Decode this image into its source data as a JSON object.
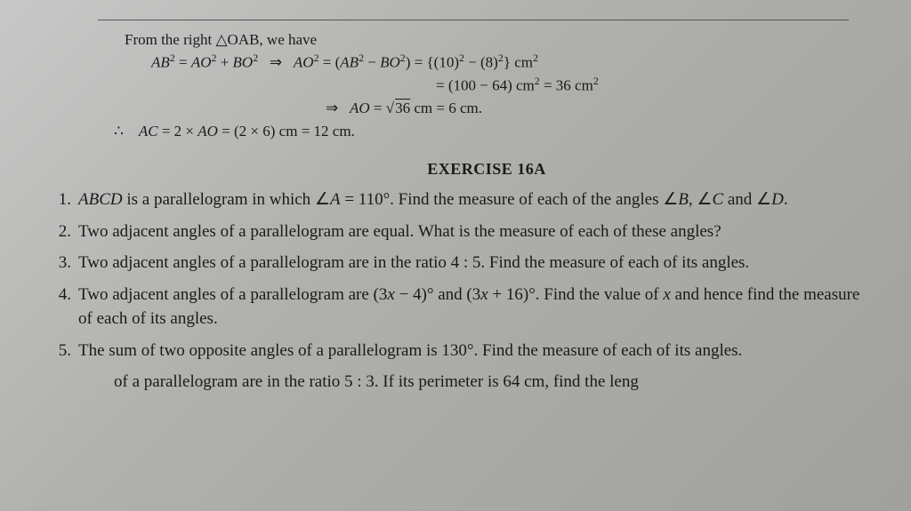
{
  "header_partial": "",
  "intro_line": "From the right △OAB, we have",
  "math1": "AB² = AO² + BO²   ⇒   AO² = (AB² − BO²) = {(10)² − (8)²} cm²",
  "math2": "= (100 − 64) cm² = 36 cm²",
  "math3": "⇒   AO = √36 cm = 6 cm.",
  "math4": "∴    AC = 2 × AO = (2 × 6) cm = 12 cm.",
  "exercise_title": "EXERCISE 16A",
  "questions": [
    {
      "num": "1.",
      "text_parts": [
        {
          "italic": true,
          "t": "ABCD"
        },
        {
          "t": " is a parallelogram in which ∠"
        },
        {
          "italic": true,
          "t": "A"
        },
        {
          "t": " = 110°. Find the measure of each of the angles ∠"
        },
        {
          "italic": true,
          "t": "B"
        },
        {
          "t": ", ∠"
        },
        {
          "italic": true,
          "t": "C"
        },
        {
          "t": " and ∠"
        },
        {
          "italic": true,
          "t": "D"
        },
        {
          "t": "."
        }
      ]
    },
    {
      "num": "2.",
      "text_parts": [
        {
          "t": "Two adjacent angles of a parallelogram are equal. What is the measure of each of these angles?"
        }
      ]
    },
    {
      "num": "3.",
      "text_parts": [
        {
          "t": "Two adjacent angles of a parallelogram are in the ratio 4 : 5. Find the measure of each of its angles."
        }
      ]
    },
    {
      "num": "4.",
      "text_parts": [
        {
          "t": "Two adjacent angles of a parallelogram are (3"
        },
        {
          "italic": true,
          "t": "x"
        },
        {
          "t": " − 4)° and (3"
        },
        {
          "italic": true,
          "t": "x"
        },
        {
          "t": " + 16)°. Find the value of "
        },
        {
          "italic": true,
          "t": "x"
        },
        {
          "t": " and hence find the measure of each of its angles."
        }
      ]
    },
    {
      "num": "5.",
      "text_parts": [
        {
          "t": "The sum of two opposite angles of a parallelogram is 130°. Find the measure of each of its angles."
        }
      ]
    }
  ],
  "bottom_partial": "of a parallelogram are in the ratio 5 : 3. If its perimeter is 64 cm, find the leng",
  "colors": {
    "text": "#1a1a1a",
    "bg_light": "#c8c8c8",
    "bg_dark": "#a0a09c",
    "line": "#555"
  },
  "fontsize": {
    "body": 19,
    "math": 17,
    "title": 18
  }
}
